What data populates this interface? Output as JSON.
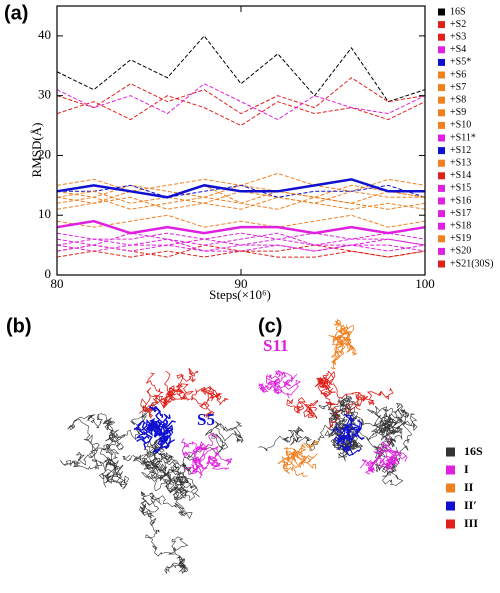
{
  "chart_data": {
    "type": "line",
    "panel_label": "(a)",
    "xlabel": "Steps(×10⁶)",
    "ylabel": "RMSD(Å)",
    "x": [
      80,
      82,
      84,
      86,
      88,
      90,
      92,
      94,
      96,
      98,
      100
    ],
    "xlim": [
      80,
      100
    ],
    "xticks": [
      80,
      90,
      100
    ],
    "ylim": [
      0,
      45
    ],
    "yticks": [
      0,
      10,
      20,
      30,
      40
    ],
    "series": [
      {
        "name": "16S",
        "color": "#000000",
        "style": "dashed",
        "width": 1,
        "values": [
          34,
          31,
          36,
          33,
          40,
          32,
          37,
          30,
          38,
          29,
          31
        ]
      },
      {
        "name": "+S2",
        "color": "#e0201b",
        "style": "dashed",
        "width": 1,
        "values": [
          30,
          28,
          32,
          29,
          31,
          27,
          30,
          28,
          33,
          29,
          30
        ]
      },
      {
        "name": "+S3",
        "color": "#e0201b",
        "style": "dashed",
        "width": 1,
        "values": [
          27,
          29,
          26,
          30,
          28,
          25,
          29,
          27,
          28,
          26,
          29
        ]
      },
      {
        "name": "+S4",
        "color": "#e020e0",
        "style": "dashed",
        "width": 1,
        "values": [
          31,
          28,
          30,
          27,
          32,
          29,
          26,
          30,
          28,
          27,
          30
        ]
      },
      {
        "name": "+S5*",
        "color": "#1010d0",
        "style": "solid",
        "width": 2.5,
        "values": [
          14,
          15,
          14,
          13,
          15,
          14,
          14,
          15,
          16,
          14,
          14
        ]
      },
      {
        "name": "+S6",
        "color": "#f08020",
        "style": "dashed",
        "width": 1,
        "values": [
          13,
          12,
          14,
          13,
          12,
          14,
          13,
          12,
          14,
          13,
          13
        ]
      },
      {
        "name": "+S7",
        "color": "#f08020",
        "style": "dashed",
        "width": 1,
        "values": [
          15,
          16,
          14,
          15,
          16,
          15,
          17,
          15,
          14,
          16,
          15
        ]
      },
      {
        "name": "+S8",
        "color": "#f08020",
        "style": "dashed",
        "width": 1,
        "values": [
          12,
          13,
          11,
          12,
          13,
          12,
          11,
          13,
          12,
          11,
          12
        ]
      },
      {
        "name": "+S9",
        "color": "#f08020",
        "style": "dashed",
        "width": 1,
        "values": [
          14,
          13,
          15,
          14,
          13,
          15,
          14,
          13,
          15,
          14,
          13
        ]
      },
      {
        "name": "+S10",
        "color": "#f08020",
        "style": "dashed",
        "width": 1,
        "values": [
          11,
          12,
          13,
          11,
          12,
          11,
          13,
          12,
          11,
          12,
          11
        ]
      },
      {
        "name": "+S11*",
        "color": "#e020e0",
        "style": "solid",
        "width": 2.5,
        "values": [
          8,
          9,
          7,
          8,
          7,
          8,
          8,
          7,
          8,
          7,
          8
        ]
      },
      {
        "name": "+S12",
        "color": "#1010d0",
        "style": "dashed",
        "width": 1,
        "values": [
          14,
          14,
          15,
          13,
          14,
          15,
          13,
          14,
          14,
          15,
          13
        ]
      },
      {
        "name": "+S13",
        "color": "#f08020",
        "style": "dashed",
        "width": 1,
        "values": [
          13,
          14,
          12,
          13,
          15,
          12,
          14,
          13,
          12,
          14,
          13
        ]
      },
      {
        "name": "+S14",
        "color": "#e0201b",
        "style": "dashed",
        "width": 1,
        "values": [
          4,
          5,
          4,
          3,
          5,
          4,
          4,
          5,
          4,
          3,
          4
        ]
      },
      {
        "name": "+S15",
        "color": "#e020e0",
        "style": "dashed",
        "width": 1,
        "values": [
          6,
          5,
          7,
          6,
          5,
          6,
          7,
          5,
          6,
          6,
          5
        ]
      },
      {
        "name": "+S16",
        "color": "#e020e0",
        "style": "dashed",
        "width": 1,
        "values": [
          5,
          4,
          5,
          6,
          4,
          5,
          5,
          4,
          5,
          5,
          4
        ]
      },
      {
        "name": "+S17",
        "color": "#e020e0",
        "style": "dashed",
        "width": 1,
        "values": [
          7,
          6,
          6,
          7,
          6,
          7,
          6,
          7,
          6,
          7,
          6
        ]
      },
      {
        "name": "+S18",
        "color": "#e020e0",
        "style": "dashed",
        "width": 1,
        "values": [
          5,
          6,
          5,
          5,
          6,
          5,
          6,
          5,
          5,
          6,
          5
        ]
      },
      {
        "name": "+S19",
        "color": "#f08020",
        "style": "dashed",
        "width": 1,
        "values": [
          9,
          8,
          9,
          10,
          8,
          9,
          8,
          9,
          10,
          8,
          9
        ]
      },
      {
        "name": "+S20",
        "color": "#e020e0",
        "style": "dashed",
        "width": 1,
        "values": [
          4,
          5,
          4,
          5,
          4,
          4,
          5,
          4,
          5,
          4,
          5
        ]
      },
      {
        "name": "+S21(30S)",
        "color": "#e0201b",
        "style": "dashed",
        "width": 1,
        "values": [
          3,
          4,
          3,
          4,
          3,
          4,
          3,
          3,
          4,
          3,
          4
        ]
      }
    ]
  },
  "panels": {
    "b": {
      "label": "(b)",
      "annotation": "S5"
    },
    "c": {
      "label": "(c)",
      "annotation": "S11"
    },
    "legend": [
      {
        "name": "16S",
        "color": "#333333"
      },
      {
        "name": "I",
        "color": "#e020e0"
      },
      {
        "name": "II",
        "color": "#f08020"
      },
      {
        "name": "II′",
        "color": "#1010d0"
      },
      {
        "name": "III",
        "color": "#e0201b"
      }
    ]
  }
}
